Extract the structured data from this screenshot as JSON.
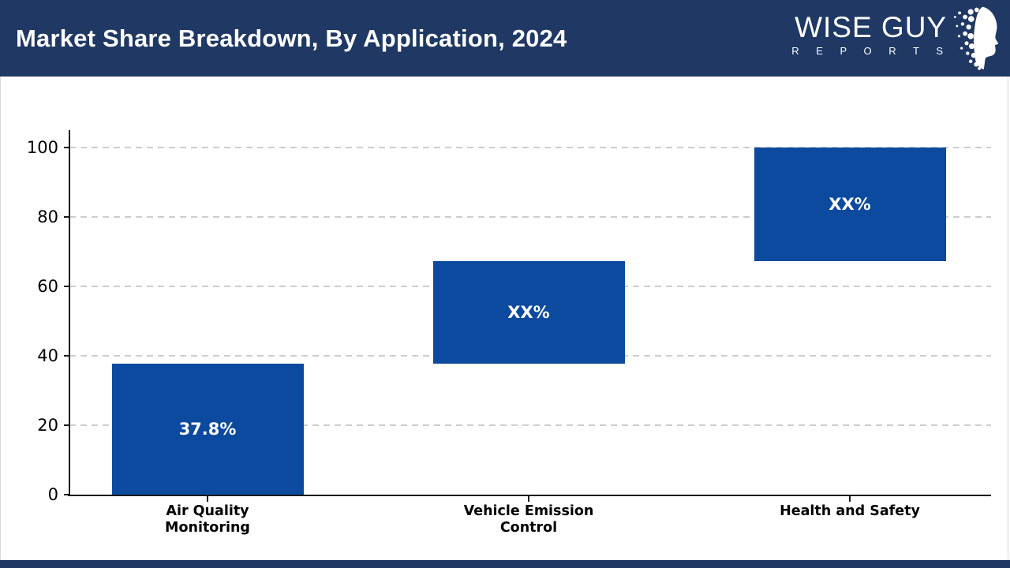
{
  "header": {
    "title": "Market Share Breakdown, By Application, 2024"
  },
  "logo": {
    "line1": "WISE GUY",
    "line2": "R E P O R T S"
  },
  "watermark": {
    "line1": "WISE GUY",
    "line2": "R E P O R T S"
  },
  "colors": {
    "header_bg": "#1f3864",
    "footer_bg": "#1f3864",
    "bar_blue": "#0b4a9e",
    "gridline": "#cdcdcd",
    "axis": "#1a1a1a",
    "watermark": "#f2f2f2",
    "bar_label_text": "#ffffff"
  },
  "chart_data": {
    "type": "bar",
    "subtype": "waterfall-breakdown",
    "title": "Market Share Breakdown, By Application, 2024",
    "xlabel": "",
    "ylabel": "",
    "categories": [
      "Air Quality\nMonitoring",
      "Vehicle Emission\nControl",
      "Health and Safety"
    ],
    "segments": [
      {
        "category": "Air Quality Monitoring",
        "start": 0,
        "end": 37.8,
        "label": "37.8%"
      },
      {
        "category": "Vehicle Emission Control",
        "start": 37.8,
        "end": 67.2,
        "label": "XX%"
      },
      {
        "category": "Health and Safety",
        "start": 67.2,
        "end": 100,
        "label": "XX%"
      }
    ],
    "yticks": [
      0,
      20,
      40,
      60,
      80,
      100
    ],
    "ylim": [
      0,
      105
    ],
    "grid": "dashed-horizontal",
    "legend": "none",
    "bar_color": "#0b4a9e",
    "value_label_color": "#ffffff"
  }
}
